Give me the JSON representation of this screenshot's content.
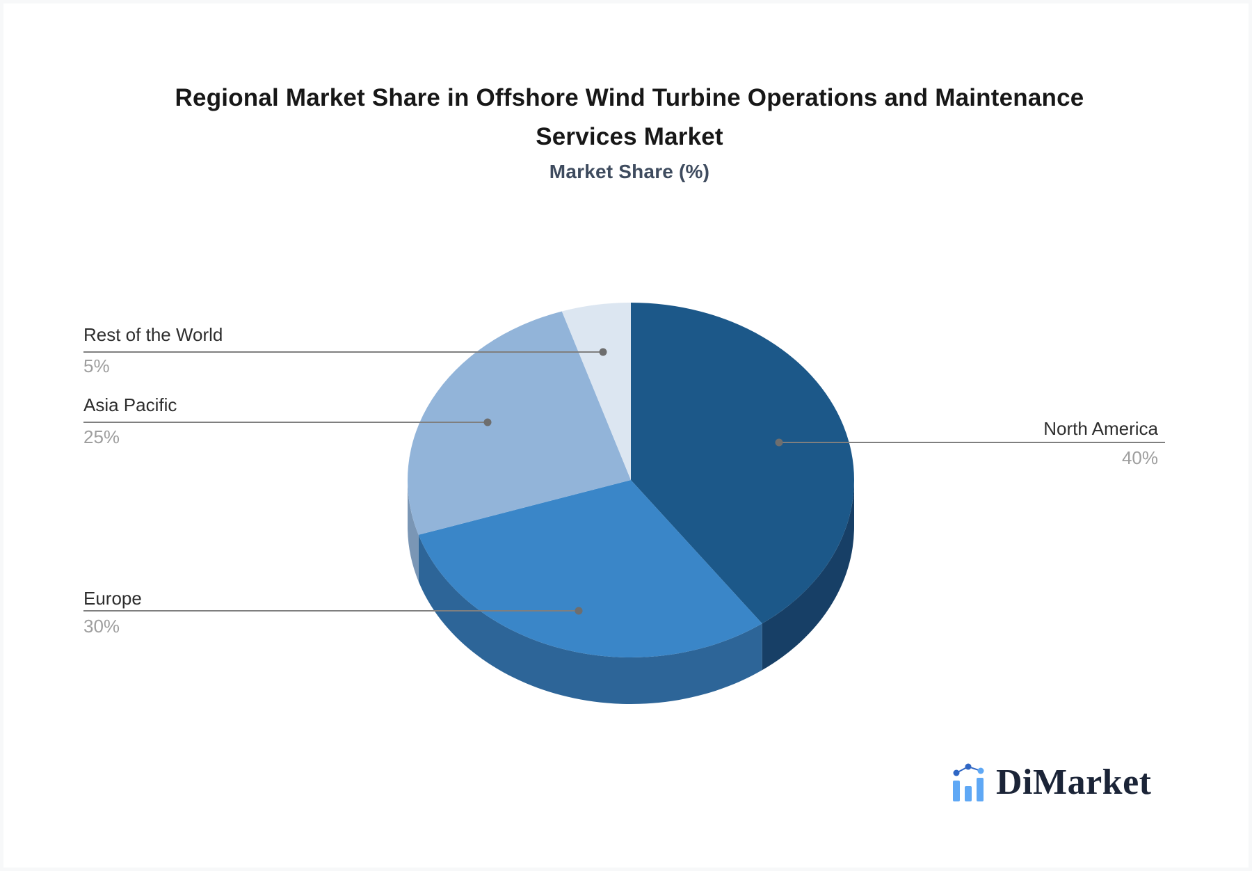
{
  "header": {
    "title_line1": "Regional Market Share in Offshore Wind Turbine Operations and Maintenance",
    "title_line2": "Services Market",
    "subtitle": "Market Share (%)"
  },
  "chart_data": {
    "type": "pie",
    "style": "3d",
    "title": "Regional Market Share in Offshore Wind Turbine Operations and Maintenance Services Market",
    "subtitle": "Market Share (%)",
    "unit": "%",
    "start_angle_deg": 0,
    "direction": "clockwise",
    "legend": "none",
    "labels": "leader-line callouts",
    "slices": [
      {
        "label": "North America",
        "value": 40,
        "display": "40%",
        "color": "#1c5889",
        "side_color": "#173f66"
      },
      {
        "label": "Europe",
        "value": 30,
        "display": "30%",
        "color": "#3a86c8",
        "side_color": "#2d6598"
      },
      {
        "label": "Asia Pacific",
        "value": 25,
        "display": "25%",
        "color": "#92b4d9",
        "side_color": "#7a96b5"
      },
      {
        "label": "Rest of the World",
        "value": 5,
        "display": "5%",
        "color": "#dce6f1",
        "side_color": "#bccadd"
      }
    ]
  },
  "colors": {
    "leader_line": "#7f7f7f",
    "leader_dot": "#6e6e6e",
    "label_text": "#2d2d2d",
    "pct_text": "#9e9e9e",
    "title_text": "#171717",
    "subtitle_text": "#3e4b5e",
    "logo_text": "#1b2437",
    "logo_bar": "#5fa8f5",
    "logo_accent": "#2f66c4"
  },
  "logo": {
    "text": "DiMarket",
    "icon": "bar-line-chart-icon"
  }
}
